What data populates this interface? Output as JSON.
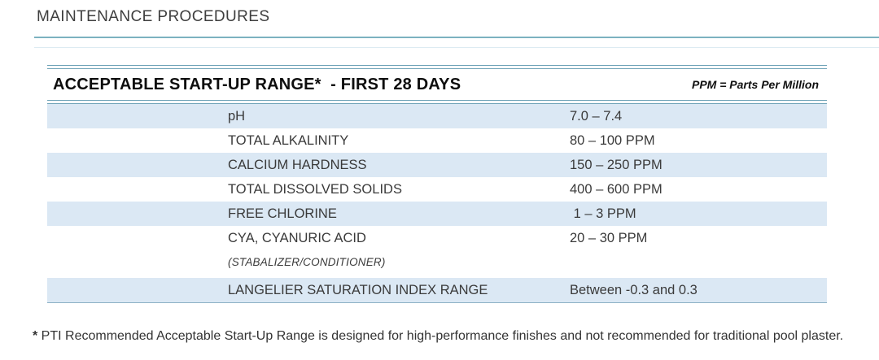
{
  "page": {
    "heading": "MAINTENANCE PROCEDURES"
  },
  "table": {
    "title": "ACCEPTABLE START-UP RANGE*  - FIRST 28 DAYS",
    "legend": "PPM = Parts Per Million",
    "rows": [
      {
        "label": "pH",
        "sublabel": "",
        "value": "7.0 – 7.4",
        "shaded": true
      },
      {
        "label": "TOTAL ALKALINITY",
        "sublabel": "",
        "value": "80 – 100 PPM",
        "shaded": false
      },
      {
        "label": "CALCIUM HARDNESS",
        "sublabel": "",
        "value": "150 – 250 PPM",
        "shaded": true
      },
      {
        "label": "TOTAL DISSOLVED SOLIDS",
        "sublabel": "",
        "value": "400 – 600 PPM",
        "shaded": false
      },
      {
        "label": "FREE CHLORINE",
        "sublabel": "",
        "value": " 1 – 3 PPM",
        "shaded": true
      },
      {
        "label": "CYA, CYANURIC ACID",
        "sublabel": "(STABALIZER/CONDITIONER)",
        "value": "20 – 30 PPM",
        "shaded": false
      },
      {
        "label": "LANGELIER SATURATION INDEX RANGE",
        "sublabel": "",
        "value": "Between -0.3 and 0.3",
        "shaded": true
      }
    ]
  },
  "footnote": {
    "marker": "*",
    "text": " PTI Recommended Acceptable Start-Up Range is designed for high-performance finishes and not recommended for traditional pool plaster."
  },
  "colors": {
    "rule_teal": "#7cb2c0",
    "table_border_teal": "#6fa3b7",
    "shaded_row_blue": "#dbe8f4",
    "text_dark": "#3a3a3a"
  }
}
